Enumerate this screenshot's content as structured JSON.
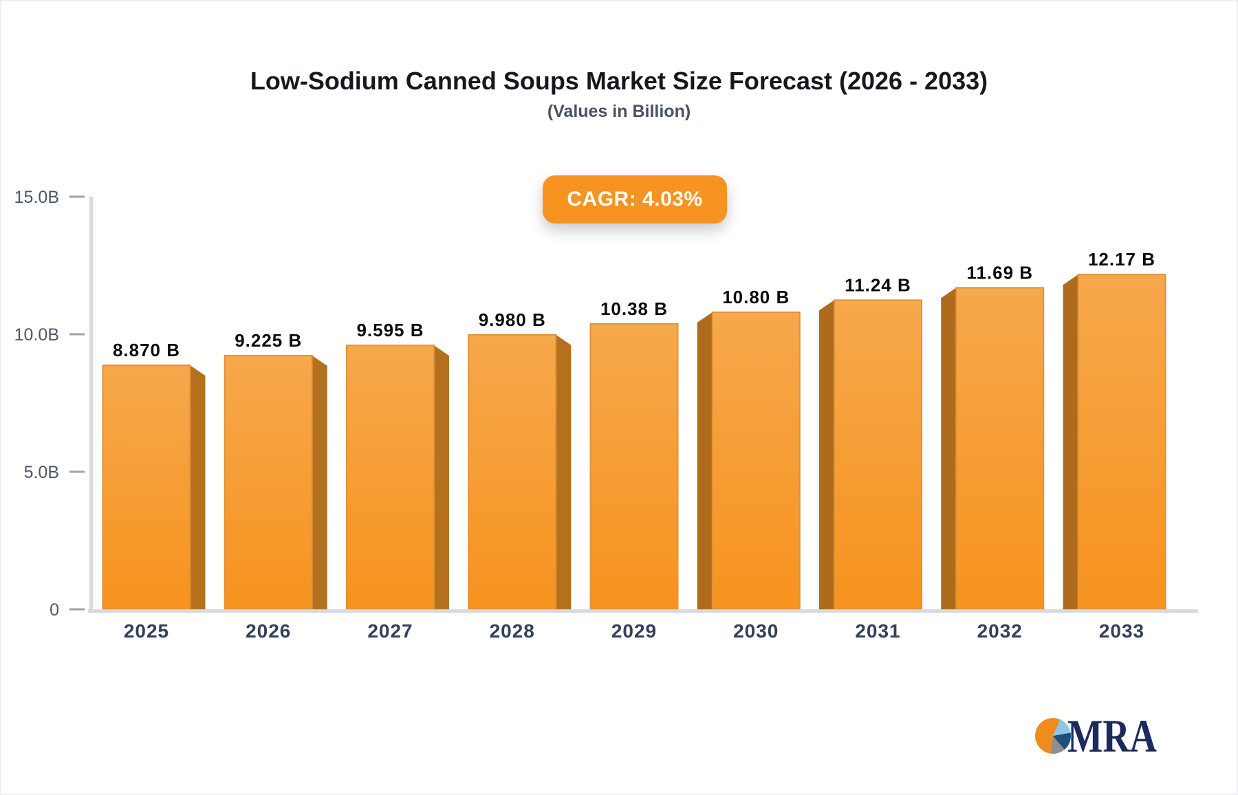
{
  "header": {
    "title": "Low-Sodium Canned Soups Market Size Forecast (2026 - 2033)",
    "subtitle": "(Values in Billion)"
  },
  "badge": {
    "label": "CAGR: 4.03%",
    "bg": "#f79421",
    "text_color": "#ffffff"
  },
  "chart_data": {
    "type": "bar",
    "title": "Low-Sodium Canned Soups Market Size Forecast (2026 - 2033)",
    "subtitle": "(Values in Billion)",
    "unit": "Billion",
    "cagr": "4.03%",
    "categories": [
      "2025",
      "2026",
      "2027",
      "2028",
      "2029",
      "2030",
      "2031",
      "2032",
      "2033"
    ],
    "values": [
      8.87,
      9.225,
      9.595,
      9.98,
      10.38,
      10.8,
      11.24,
      11.69,
      12.17
    ],
    "value_labels": [
      "8.870 B",
      "9.225 B",
      "9.595 B",
      "9.980 B",
      "10.38 B",
      "10.80 B",
      "11.24 B",
      "11.69 B",
      "12.17 B"
    ],
    "ylim": [
      0,
      15
    ],
    "yticks": [
      {
        "value": 15,
        "label": "15.0B"
      },
      {
        "value": 10,
        "label": "10.0B"
      },
      {
        "value": 5,
        "label": "5.0B"
      },
      {
        "value": 0,
        "label": "0"
      }
    ],
    "grid": false,
    "legend": "none",
    "colors": {
      "bar_top": "#f6a84c",
      "bar_bottom": "#f7931e",
      "bar_edge": "#e0913a",
      "bar_side_right": "#b5701d",
      "bar_side_left": "#ad6b1b",
      "axis_line": "#d8dade",
      "tick_mark": "#9aa2ae",
      "ytick_text": "#4d5667",
      "xtick_text": "#33405a",
      "value_text": "#0c0c0e"
    }
  },
  "logo": {
    "text": "MRA",
    "text_color": "#1a2b5c",
    "pie_colors": {
      "orange": "#ef8c1f",
      "light_blue": "#8ec7e6",
      "navy": "#1f4e79",
      "gray": "#8d8d92"
    }
  }
}
